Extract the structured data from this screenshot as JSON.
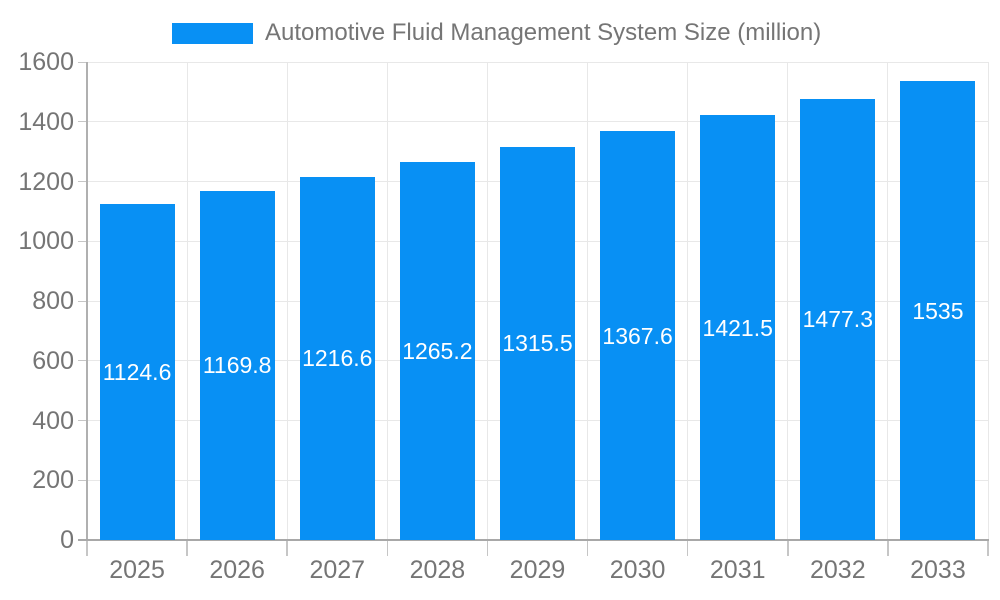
{
  "legend": {
    "label": "Automotive Fluid Management System Size (million)"
  },
  "chart_data": {
    "type": "bar",
    "title": "Automotive Fluid Management System Size (million)",
    "categories": [
      "2025",
      "2026",
      "2027",
      "2028",
      "2029",
      "2030",
      "2031",
      "2032",
      "2033"
    ],
    "values": [
      1124.6,
      1169.8,
      1216.6,
      1265.2,
      1315.5,
      1367.6,
      1421.5,
      1477.3,
      1535
    ],
    "xlabel": "",
    "ylabel": "",
    "ylim": [
      0,
      1600
    ],
    "y_ticks": [
      0,
      200,
      400,
      600,
      800,
      1000,
      1200,
      1400,
      1600
    ],
    "grid": true,
    "legend_position": "top",
    "colors": {
      "bar": "#0890f4",
      "grid_line": "#e8e8e8",
      "axis_line": "#b0b0b0",
      "baseline": "#a8a8a8",
      "tick_mark": "#c6c6c6",
      "axis_text": "#757575",
      "bar_label_text": "#ffffff"
    }
  }
}
